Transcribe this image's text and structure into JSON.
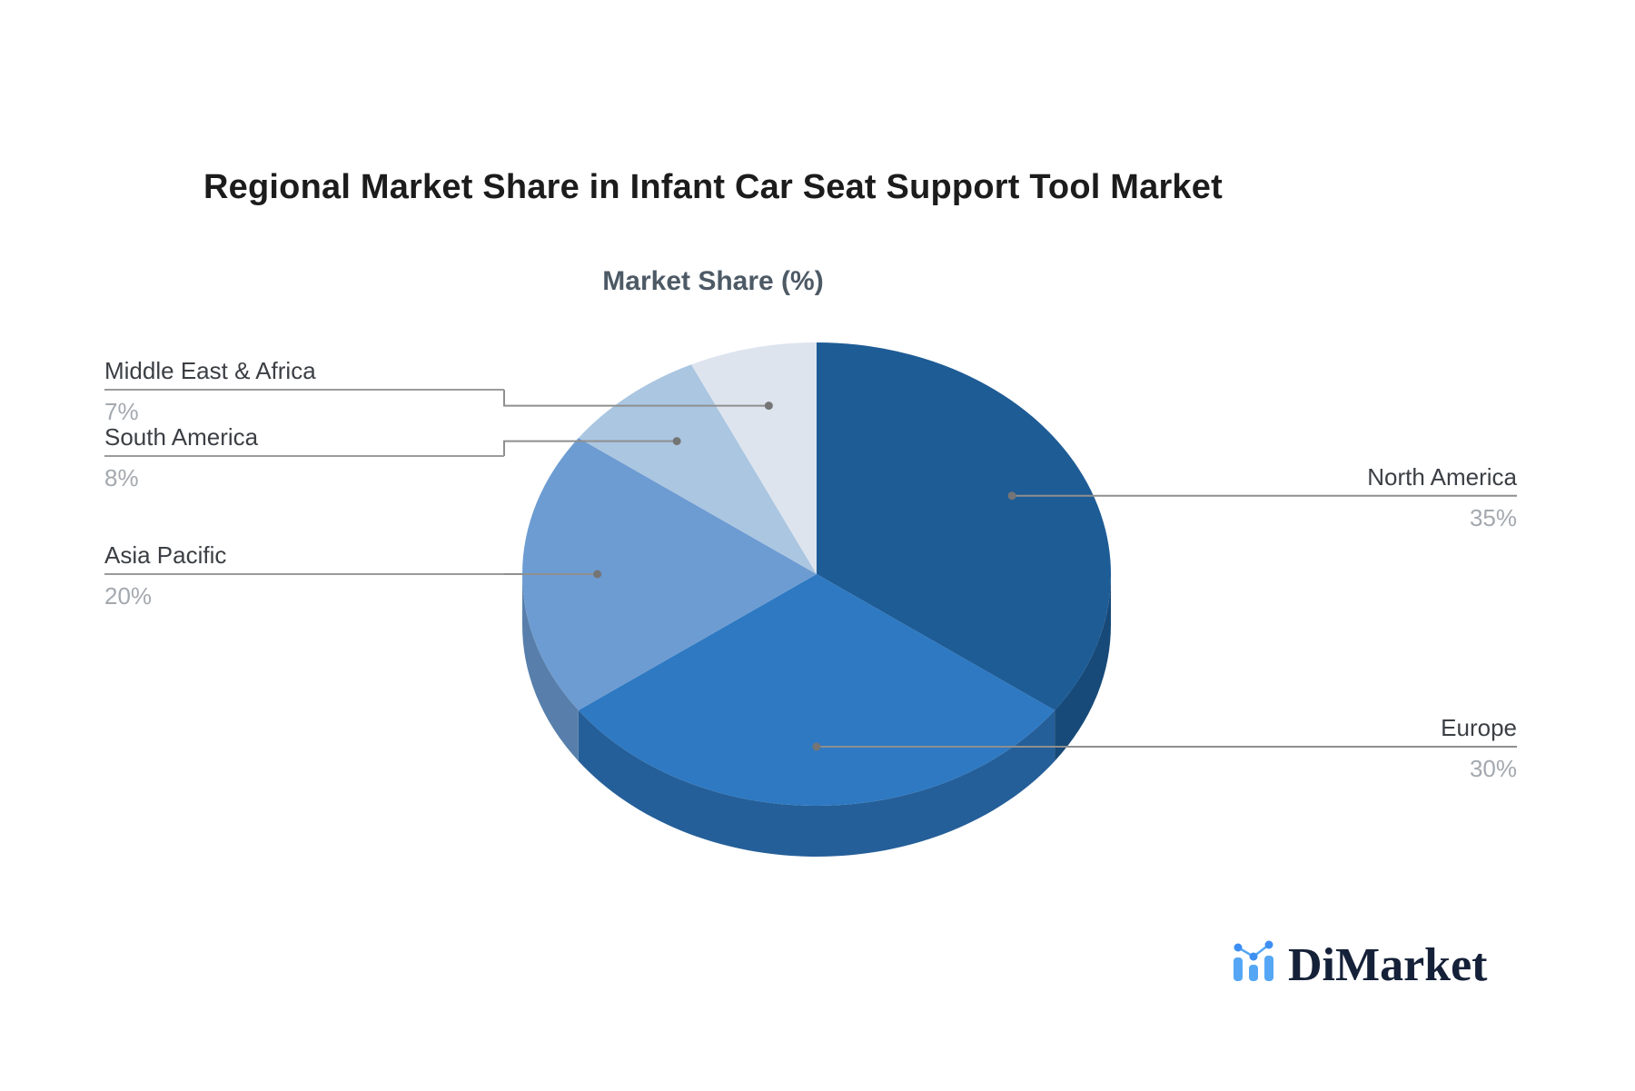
{
  "title": "Regional Market Share in Infant Car Seat Support Tool Market",
  "subtitle": "Market Share (%)",
  "chart_data": {
    "type": "pie",
    "style": "3d-pie",
    "title": "Regional Market Share in Infant Car Seat Support Tool Market",
    "unit": "%",
    "start_angle_deg": 0,
    "direction": "clockwise",
    "legend_position": "none",
    "labels_shown_with_leader_lines": true,
    "slices": [
      {
        "label": "North America",
        "value": 35,
        "value_label": "35%",
        "color": "#1e5c96",
        "depth_color": "#174a78"
      },
      {
        "label": "Europe",
        "value": 30,
        "value_label": "30%",
        "color": "#2e79c2",
        "depth_color": "#255f99"
      },
      {
        "label": "Asia Pacific",
        "value": 20,
        "value_label": "20%",
        "color": "#6d9cd2",
        "depth_color": "#587fab"
      },
      {
        "label": "South America",
        "value": 8,
        "value_label": "8%",
        "color": "#abc6e1",
        "depth_color": "#8aa9c8"
      },
      {
        "label": "Middle East & Africa",
        "value": 7,
        "value_label": "7%",
        "color": "#dde4ee",
        "depth_color": "#b9c4d4"
      }
    ],
    "leader_line_color": "#8f8f8f",
    "leader_dot_color": "#757575",
    "label_name_color": "#3b3f44",
    "label_pct_color": "#a3a9af"
  },
  "logo": {
    "text": "DiMarket",
    "icon": "bar-chart-logo-icon",
    "bar_color": "#55a7f5",
    "dot_color": "#3d8ff2",
    "text_color": "#152138"
  }
}
